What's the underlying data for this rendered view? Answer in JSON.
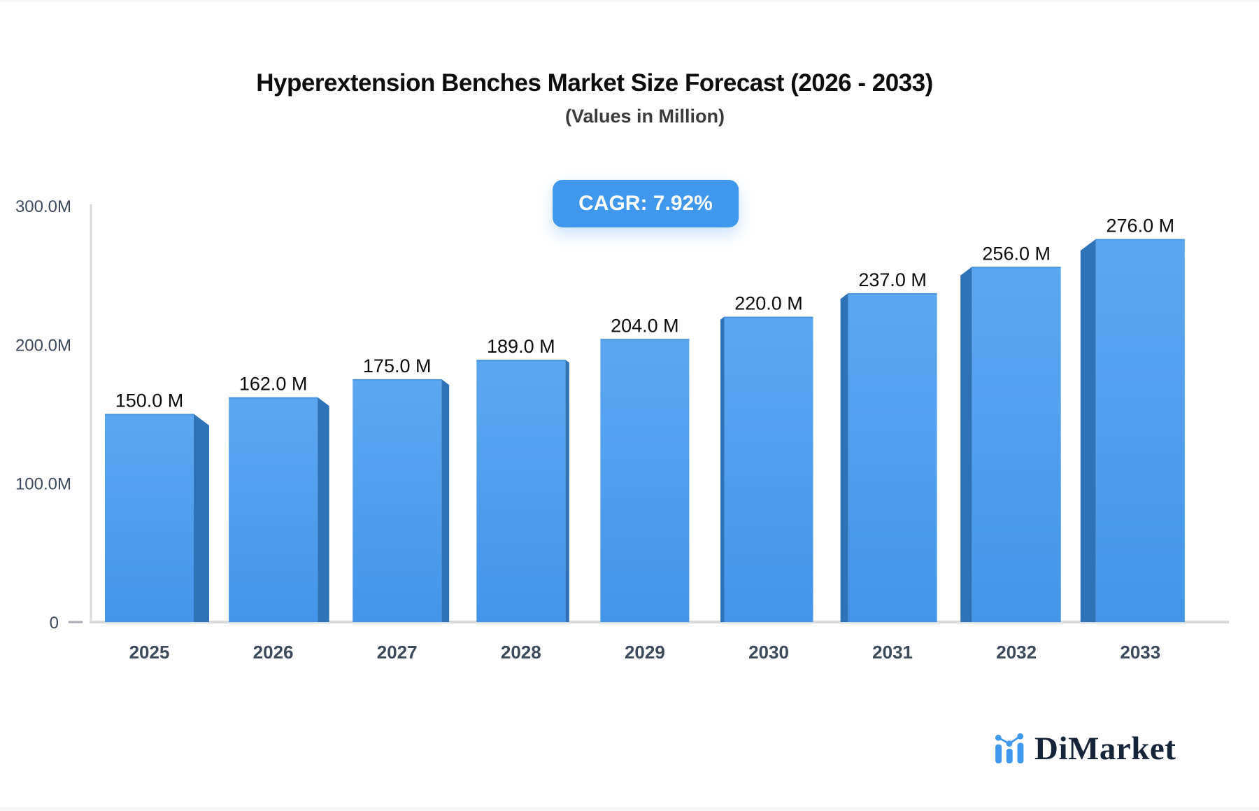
{
  "chart_data": {
    "type": "bar",
    "style": "3d-perspective-extruded-bars",
    "title": "Hyperextension Benches Market Size Forecast (2026 - 2033)",
    "subtitle": "(Values in Million)",
    "annotation": "CAGR: 7.92%",
    "categories": [
      "2025",
      "2026",
      "2027",
      "2028",
      "2029",
      "2030",
      "2031",
      "2032",
      "2033"
    ],
    "values": [
      150.0,
      162.0,
      175.0,
      189.0,
      204.0,
      220.0,
      237.0,
      256.0,
      276.0
    ],
    "value_labels": [
      "150.0 M",
      "162.0 M",
      "175.0 M",
      "189.0 M",
      "204.0 M",
      "220.0 M",
      "237.0 M",
      "256.0 M",
      "276.0 M"
    ],
    "unit": "Million",
    "xlabel": "",
    "ylabel": "",
    "ylim": [
      0,
      300
    ],
    "y_ticks": [
      {
        "value": 300,
        "label": "300.0M"
      },
      {
        "value": 200,
        "label": "200.0M"
      },
      {
        "value": 100,
        "label": "100.0M"
      },
      {
        "value": 0,
        "label": "0"
      }
    ],
    "grid": false,
    "legend": false,
    "colors": {
      "bar_face_top": "#5ca7f0",
      "bar_face_bottom": "#4495ea",
      "bar_side": "#2e73b8",
      "bar_top_edge": "#3f8cd6",
      "axis_line": "#d8dadc",
      "zero_tick": "#a8adb4",
      "axis_label": "#3c4a5c",
      "value_label": "#0c0c0c",
      "badge_bg": "#3f97ee",
      "badge_text": "#ffffff"
    }
  },
  "footer": {
    "brand": "DiMarket",
    "logo_icon": "mini-bar-line-chart-icon",
    "logo_color": "#3f97ee",
    "brand_text_color": "#16243a"
  }
}
